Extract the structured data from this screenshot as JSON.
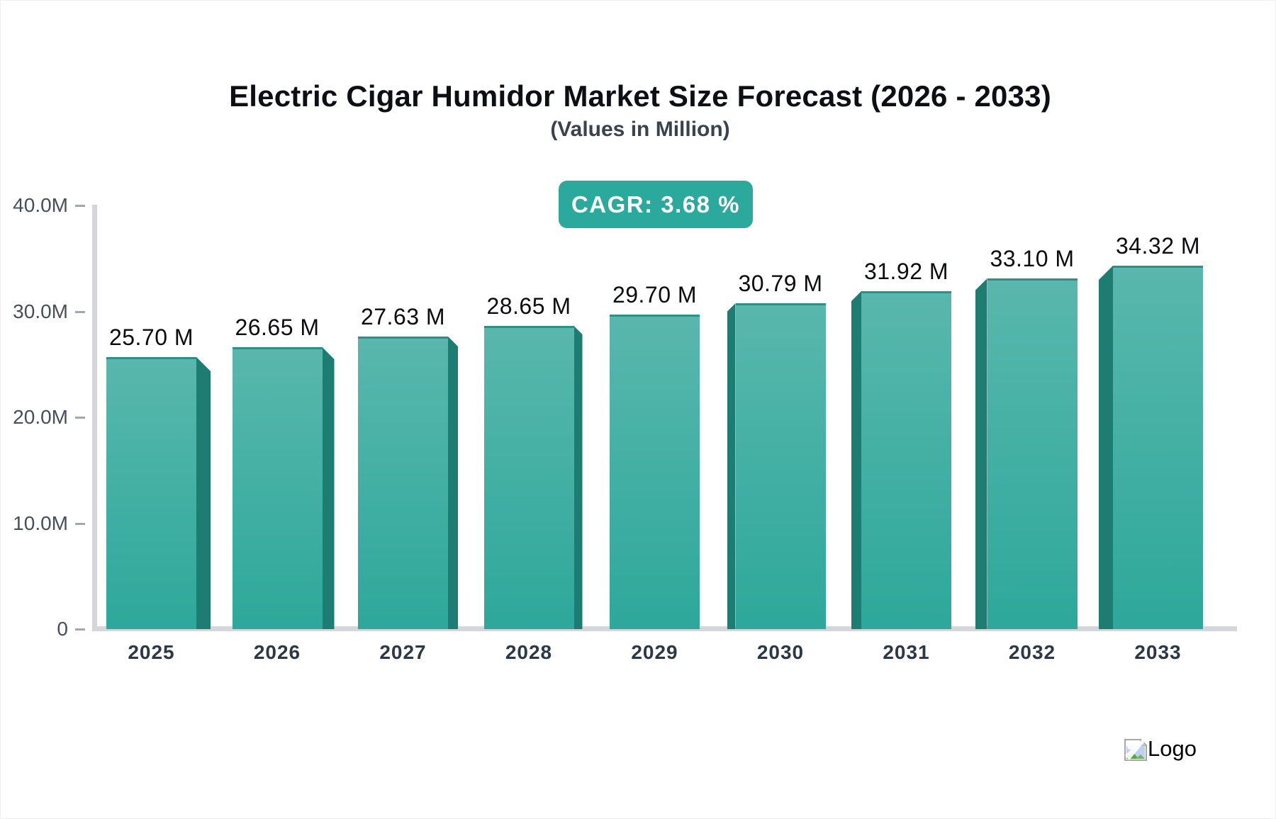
{
  "header": {
    "title": "Electric Cigar Humidor Market Size Forecast (2026 - 2033)",
    "subtitle": "(Values in Million)"
  },
  "badge": {
    "label": "CAGR: 3.68 %",
    "background": "#2ba99c",
    "text_color": "#ffffff"
  },
  "chart_data": {
    "type": "bar",
    "title": "Electric Cigar Humidor Market Size Forecast (2026 - 2033)",
    "subtitle": "(Values in Million)",
    "cagr_percent": 3.68,
    "unit": "Million",
    "categories": [
      "2025",
      "2026",
      "2027",
      "2028",
      "2029",
      "2030",
      "2031",
      "2032",
      "2033"
    ],
    "values": [
      25.7,
      26.65,
      27.63,
      28.65,
      29.7,
      30.79,
      31.92,
      33.1,
      34.32
    ],
    "value_labels": [
      "25.70 M",
      "26.65 M",
      "27.63 M",
      "28.65 M",
      "29.70 M",
      "30.79 M",
      "31.92 M",
      "33.10 M",
      "34.32 M"
    ],
    "y_ticks": [
      {
        "label": "40.0M",
        "value": 40
      },
      {
        "label": "30.0M",
        "value": 30
      },
      {
        "label": "20.0M",
        "value": 20
      },
      {
        "label": "10.0M",
        "value": 10
      },
      {
        "label": "0",
        "value": 0
      }
    ],
    "ylim": [
      0,
      40
    ],
    "grid": false,
    "legend": false,
    "colors": {
      "bar_top": "#59b7ad",
      "bar_bottom": "#2da89a",
      "bar_side": "#1e7d73",
      "bar_top_edge": "#2b9187",
      "axis_line": "#d5d6db",
      "tick_mark": "#a2a8b0",
      "y_label": "#454f5e",
      "x_label": "#2c3845",
      "value_label": "#0a0c0e"
    }
  },
  "footer": {
    "logo_text": "Logo"
  }
}
